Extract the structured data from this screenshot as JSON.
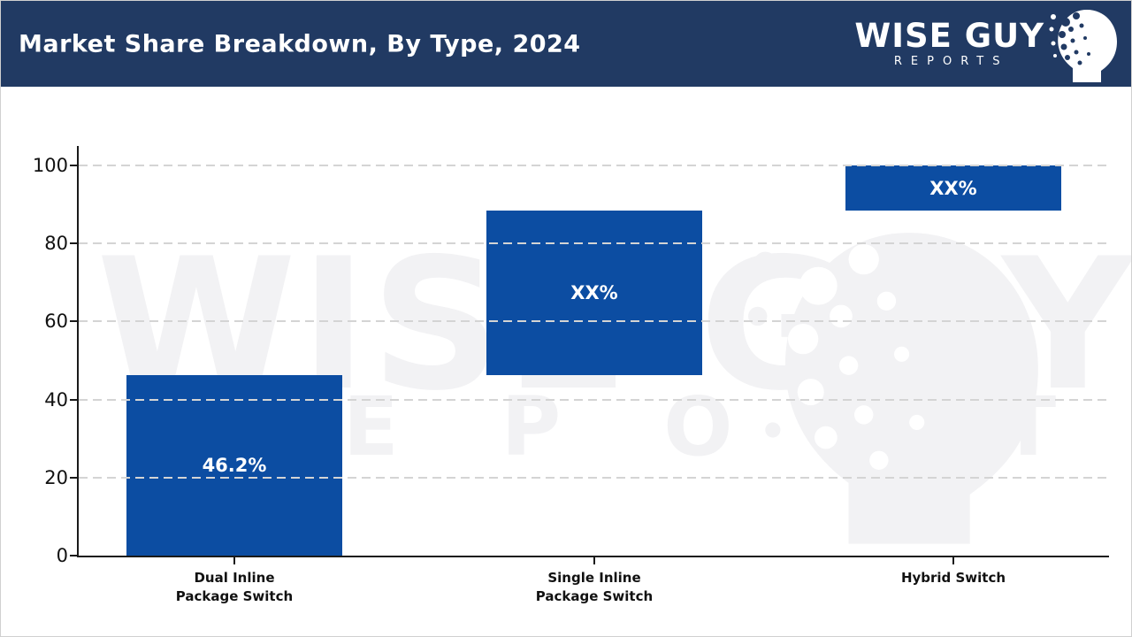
{
  "header": {
    "title": "Market Share Breakdown, By Type, 2024",
    "bg_color": "#213a63",
    "logo": {
      "line1": "WISE GUY",
      "line2": "REPORTS"
    }
  },
  "watermark": {
    "text1": "WISE GUY",
    "text2": "R E P O R T S"
  },
  "chart_data": {
    "type": "bar",
    "variant": "floating-segment / waterfall share breakdown",
    "title": "Market Share Breakdown, By Type, 2024",
    "categories": [
      [
        "Dual Inline",
        "Package Switch"
      ],
      [
        "Single Inline",
        "Package Switch"
      ],
      [
        "Hybrid Switch"
      ]
    ],
    "segments": [
      {
        "category": "Dual Inline Package Switch",
        "start": 0,
        "end": 46.2,
        "label": "46.2%"
      },
      {
        "category": "Single Inline Package Switch",
        "start": 46.2,
        "end": 88.4,
        "label": "XX%"
      },
      {
        "category": "Hybrid Switch",
        "start": 88.4,
        "end": 100,
        "label": "XX%"
      }
    ],
    "ylim": [
      0,
      100
    ],
    "yticks": [
      0,
      20,
      40,
      60,
      80,
      100
    ],
    "xlabel": "",
    "ylabel": "",
    "grid": "horizontal dashed, drawn over bars",
    "legend": "none",
    "bar_color": "#0c4da2",
    "bar_label_color": "#ffffff",
    "grid_color": "#d4d4d4",
    "axis_color": "#1a1a1a"
  }
}
